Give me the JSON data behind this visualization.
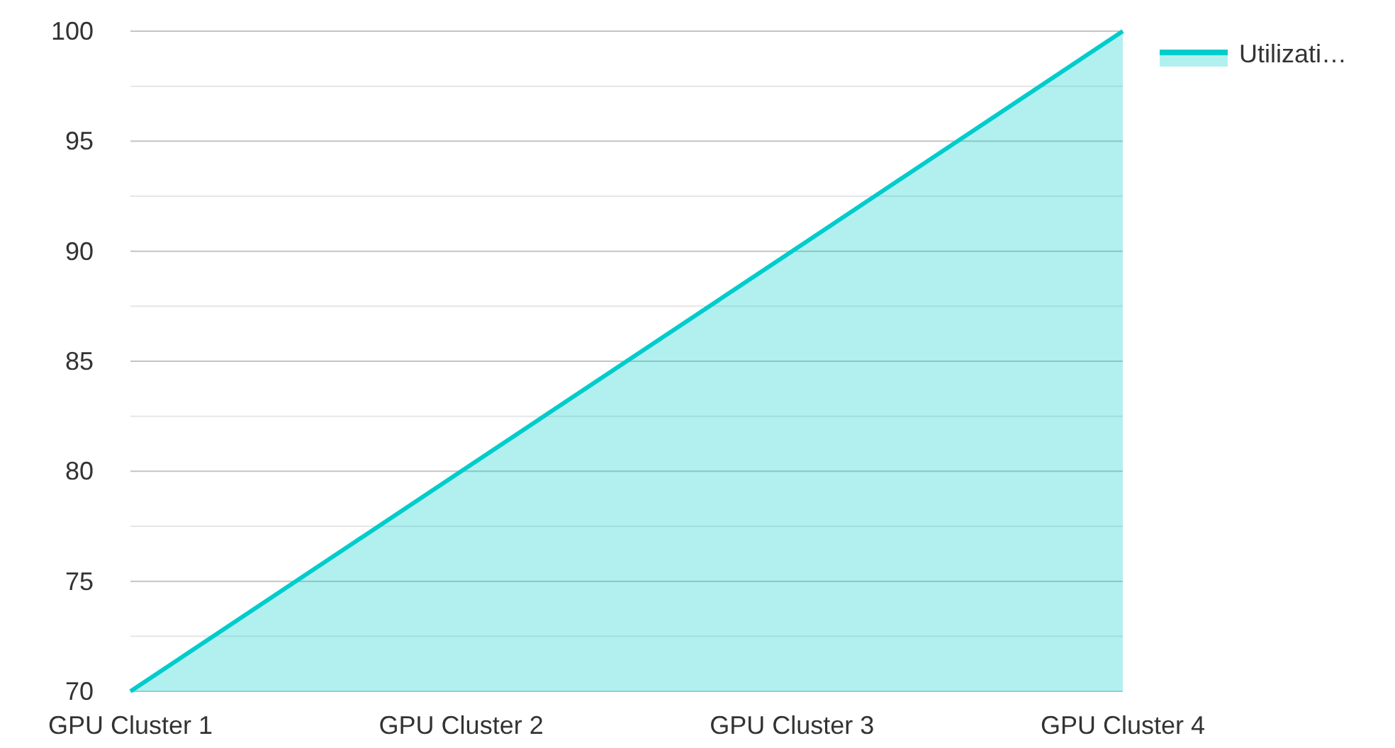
{
  "chart_data": {
    "type": "area",
    "categories": [
      "GPU Cluster 1",
      "GPU Cluster 2",
      "GPU Cluster 3",
      "GPU Cluster 4"
    ],
    "series": [
      {
        "name": "Utilizati…",
        "color": "#00cccc",
        "values": [
          70,
          80,
          90,
          100
        ]
      }
    ],
    "ylim": [
      70,
      100
    ],
    "yticks": [
      70,
      {
        "value": 72.5,
        "label": null
      },
      75,
      {
        "value": 77.5,
        "label": null
      },
      80,
      {
        "value": 82.5,
        "label": null
      },
      85,
      {
        "value": 87.5,
        "label": null
      },
      90,
      {
        "value": 92.5,
        "label": null
      },
      95,
      {
        "value": 97.5,
        "label": null
      },
      100
    ],
    "grid": "y",
    "legend": "top right"
  }
}
